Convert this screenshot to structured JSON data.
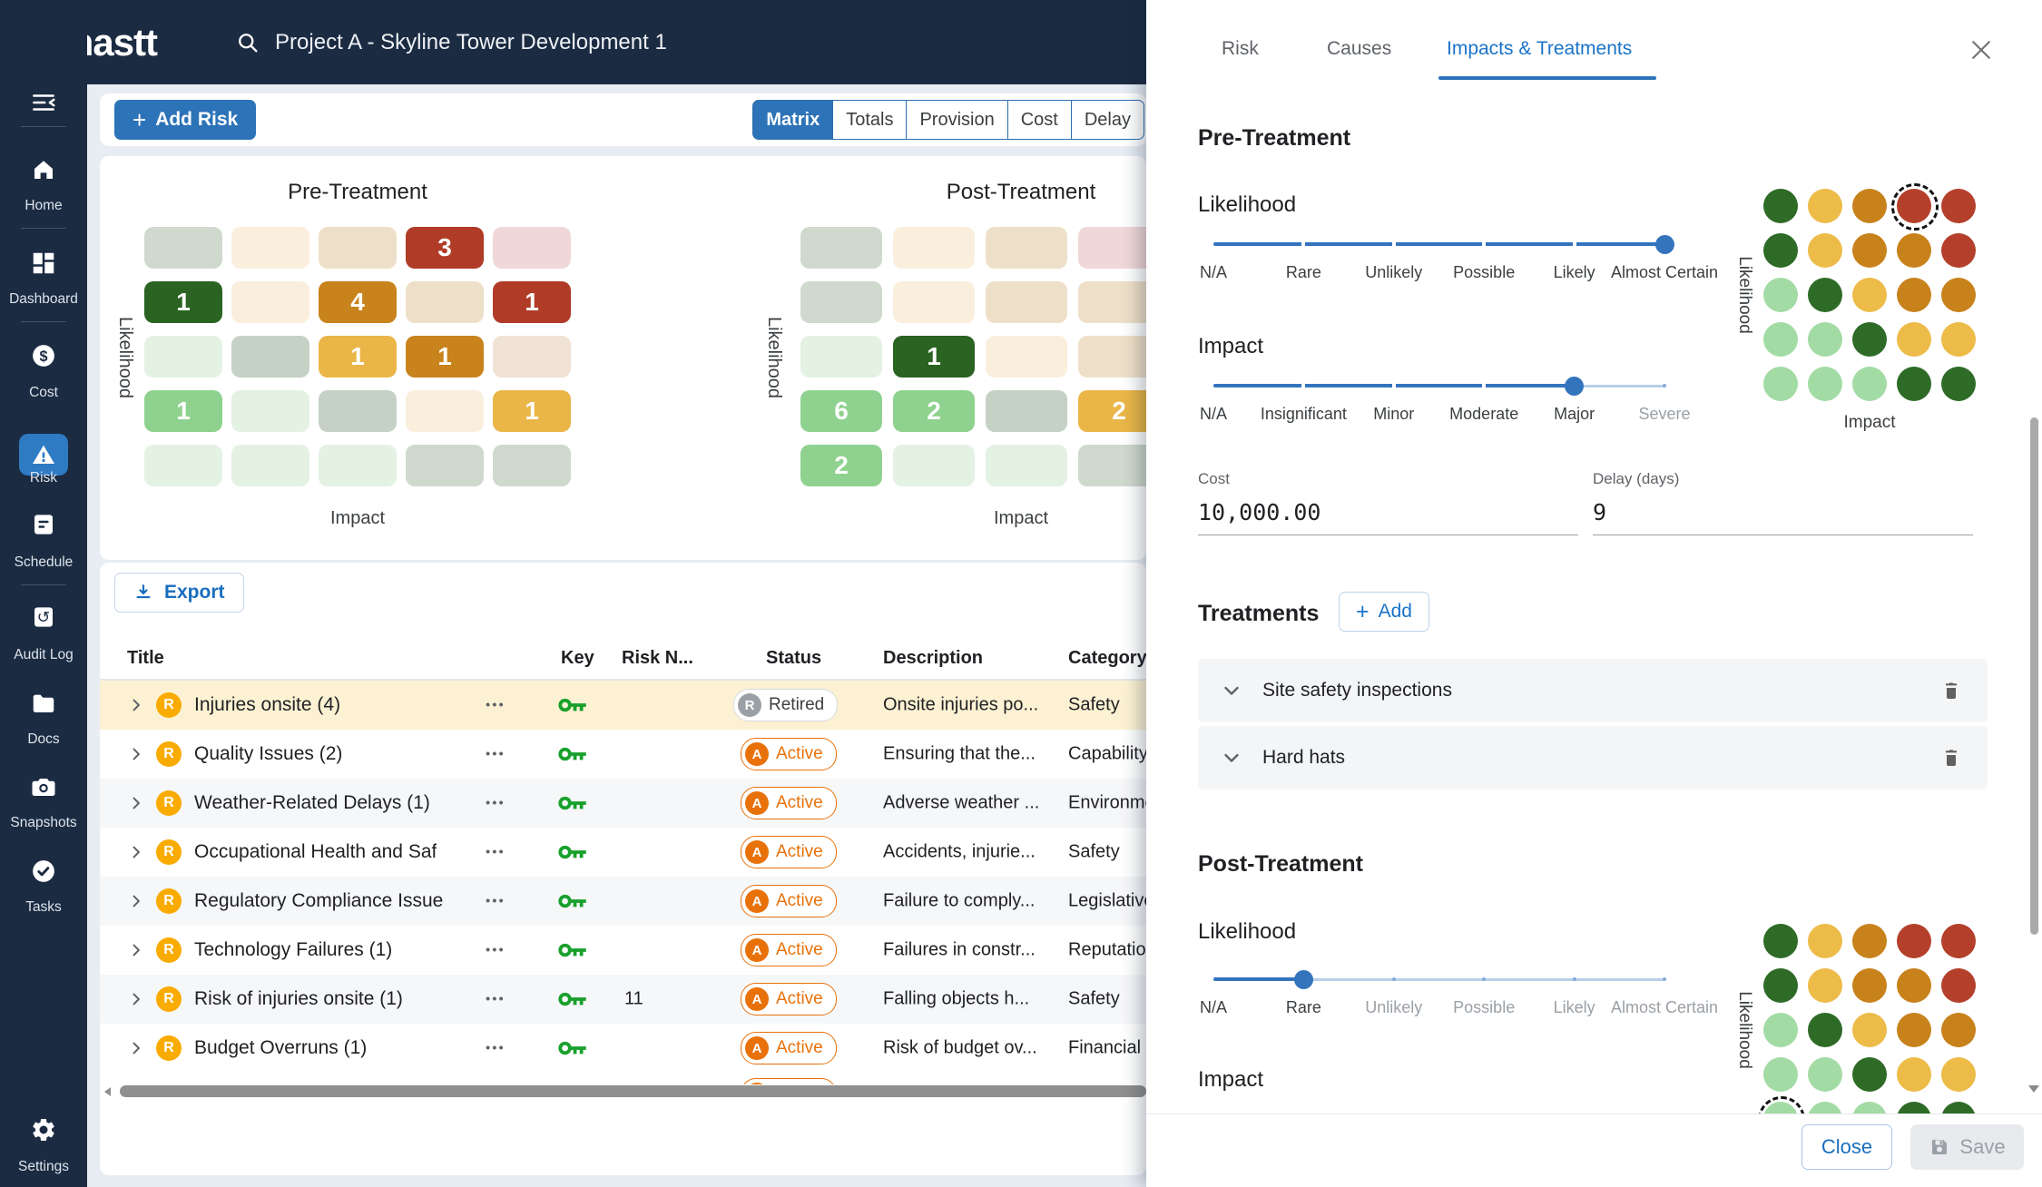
{
  "header": {
    "logo_text": "mastt",
    "project_title": "Project A - Skyline Tower Development 1"
  },
  "sidebar": {
    "items": [
      {
        "label": "Home",
        "icon": "home",
        "active": false
      },
      {
        "label": "Dashboard",
        "icon": "dashboard",
        "active": false
      },
      {
        "label": "Cost",
        "icon": "cost",
        "active": false
      },
      {
        "label": "Risk",
        "icon": "risk",
        "active": true
      },
      {
        "label": "Schedule",
        "icon": "schedule",
        "active": false
      },
      {
        "label": "Audit Log",
        "icon": "audit",
        "active": false
      },
      {
        "label": "Docs",
        "icon": "docs",
        "active": false
      },
      {
        "label": "Snapshots",
        "icon": "snapshots",
        "active": false
      },
      {
        "label": "Tasks",
        "icon": "tasks",
        "active": false
      },
      {
        "label": "Settings",
        "icon": "settings",
        "active": false
      }
    ]
  },
  "toolbar": {
    "add_risk": "Add Risk",
    "views": [
      "Matrix",
      "Totals",
      "Provision",
      "Cost",
      "Delay"
    ],
    "active_view": "Matrix"
  },
  "matrices": {
    "pre": {
      "title": "Pre-Treatment",
      "x_label": "Impact",
      "y_label": "Likelihood",
      "cells": [
        [
          "m_sage",
          "m_cream",
          "m_tan",
          "red:3",
          "m_pink"
        ],
        [
          "dgreen:1",
          "m_cream",
          "orange:4",
          "m_tan",
          "red:1"
        ],
        [
          "m_palegreen",
          "m_gray",
          "amber:1",
          "orange:1",
          "m_tan2"
        ],
        [
          "green:1",
          "m_palegreen",
          "m_gray",
          "m_cream",
          "amber:1"
        ],
        [
          "m_palegreen",
          "m_palegreen",
          "m_palegreen",
          "m_sage",
          "m_sage"
        ]
      ]
    },
    "post": {
      "title": "Post-Treatment",
      "x_label": "Impact",
      "y_label": "Likelihood",
      "cells": [
        [
          "m_sage",
          "m_cream",
          "m_tan",
          "m_pink",
          "m_pink"
        ],
        [
          "m_sage",
          "m_cream",
          "m_tan",
          "m_tan",
          "m_pink"
        ],
        [
          "m_palegreen",
          "dgreen:1",
          "m_cream",
          "m_tan",
          "m_tan"
        ],
        [
          "green:6",
          "green:2",
          "m_gray",
          "amber:2",
          "amber"
        ],
        [
          "green:2",
          "m_palegreen",
          "m_palegreen",
          "m_sage",
          "m_sage"
        ]
      ]
    },
    "palette": {
      "dgreen": "#2a6322",
      "green": "#8fd28f",
      "red": "#b03b27",
      "orange": "#c8831c",
      "amber": "#eab648",
      "m_sage": "#cfd9cd",
      "m_cream": "#faeedd",
      "m_tan": "#eee0c8",
      "m_pink": "#f0d8d8",
      "m_palegreen": "#e4f2e3",
      "m_gray": "#c5d1c4",
      "m_tan2": "#f0e2d4"
    }
  },
  "table": {
    "export_label": "Export",
    "columns": {
      "title": "Title",
      "key": "Key",
      "risk_number": "Risk N...",
      "status": "Status",
      "description": "Description",
      "category": "Category"
    },
    "rows": [
      {
        "title": "Injuries onsite",
        "count": "(4)",
        "risk_number": "",
        "status": "Retired",
        "description": "Onsite injuries po...",
        "category": "Safety",
        "selected": true
      },
      {
        "title": "Quality Issues",
        "count": "(2)",
        "risk_number": "",
        "status": "Active",
        "description": "Ensuring that the...",
        "category": "Capability",
        "selected": false
      },
      {
        "title": "Weather-Related Delays",
        "count": "(1)",
        "risk_number": "",
        "status": "Active",
        "description": "Adverse weather ...",
        "category": "Environmental",
        "selected": false
      },
      {
        "title": "Occupational Health and Saf",
        "count": "",
        "risk_number": "",
        "status": "Active",
        "description": "Accidents, injurie...",
        "category": "Safety",
        "selected": false
      },
      {
        "title": "Regulatory Compliance Issue",
        "count": "",
        "risk_number": "",
        "status": "Active",
        "description": "Failure to comply...",
        "category": "Legislative",
        "selected": false
      },
      {
        "title": "Technology Failures",
        "count": "(1)",
        "risk_number": "",
        "status": "Active",
        "description": "Failures in constr...",
        "category": "Reputation",
        "selected": false
      },
      {
        "title": "Risk of injuries onsite",
        "count": "(1)",
        "risk_number": "11",
        "status": "Active",
        "description": "Falling objects h...",
        "category": "Safety",
        "selected": false
      },
      {
        "title": "Budget Overruns",
        "count": "(1)",
        "risk_number": "",
        "status": "Active",
        "description": "Risk of budget ov...",
        "category": "Financial",
        "selected": false
      }
    ]
  },
  "panel": {
    "tabs": [
      {
        "label": "Risk",
        "active": false
      },
      {
        "label": "Causes",
        "active": false
      },
      {
        "label": "Impacts & Treatments",
        "active": true
      }
    ],
    "pre": {
      "heading": "Pre-Treatment",
      "likelihood": {
        "label": "Likelihood",
        "options": [
          "N/A",
          "Rare",
          "Unlikely",
          "Possible",
          "Likely",
          "Almost Certain"
        ],
        "value": "Almost Certain"
      },
      "impact": {
        "label": "Impact",
        "options": [
          "N/A",
          "Insignificant",
          "Minor",
          "Moderate",
          "Major",
          "Severe"
        ],
        "value": "Major"
      },
      "cost": {
        "label": "Cost",
        "value": "10,000.00"
      },
      "delay": {
        "label": "Delay (days)",
        "value": "9"
      },
      "heatmap": {
        "x_label": "Impact",
        "y_label": "Likelihood",
        "selected_row": 0,
        "selected_col": 3
      }
    },
    "treatments": {
      "heading": "Treatments",
      "add_label": "Add",
      "items": [
        {
          "label": "Site safety inspections"
        },
        {
          "label": "Hard hats"
        }
      ]
    },
    "post": {
      "heading": "Post-Treatment",
      "likelihood": {
        "label": "Likelihood",
        "options": [
          "N/A",
          "Rare",
          "Unlikely",
          "Possible",
          "Likely",
          "Almost Certain"
        ],
        "value": "Rare"
      },
      "impact": {
        "label": "Impact"
      },
      "heatmap": {
        "x_label": "Impact",
        "y_label": "Likelihood",
        "selected_row": 4,
        "selected_col": 0
      }
    },
    "footer": {
      "close_label": "Close",
      "save_label": "Save"
    },
    "heatmap_grid": [
      [
        "dg",
        "yl",
        "or",
        "rd",
        "rd"
      ],
      [
        "dg",
        "yl",
        "or",
        "or",
        "rd"
      ],
      [
        "lg",
        "dg",
        "yl",
        "or",
        "or"
      ],
      [
        "lg",
        "lg",
        "dg",
        "yl",
        "yl"
      ],
      [
        "lg",
        "lg",
        "lg",
        "dg",
        "dg"
      ]
    ],
    "heatmap_palette": {
      "dg": "#2e6b27",
      "yl": "#edbb48",
      "or": "#c8821c",
      "rd": "#b4402b",
      "lg": "#a3dba4"
    }
  }
}
